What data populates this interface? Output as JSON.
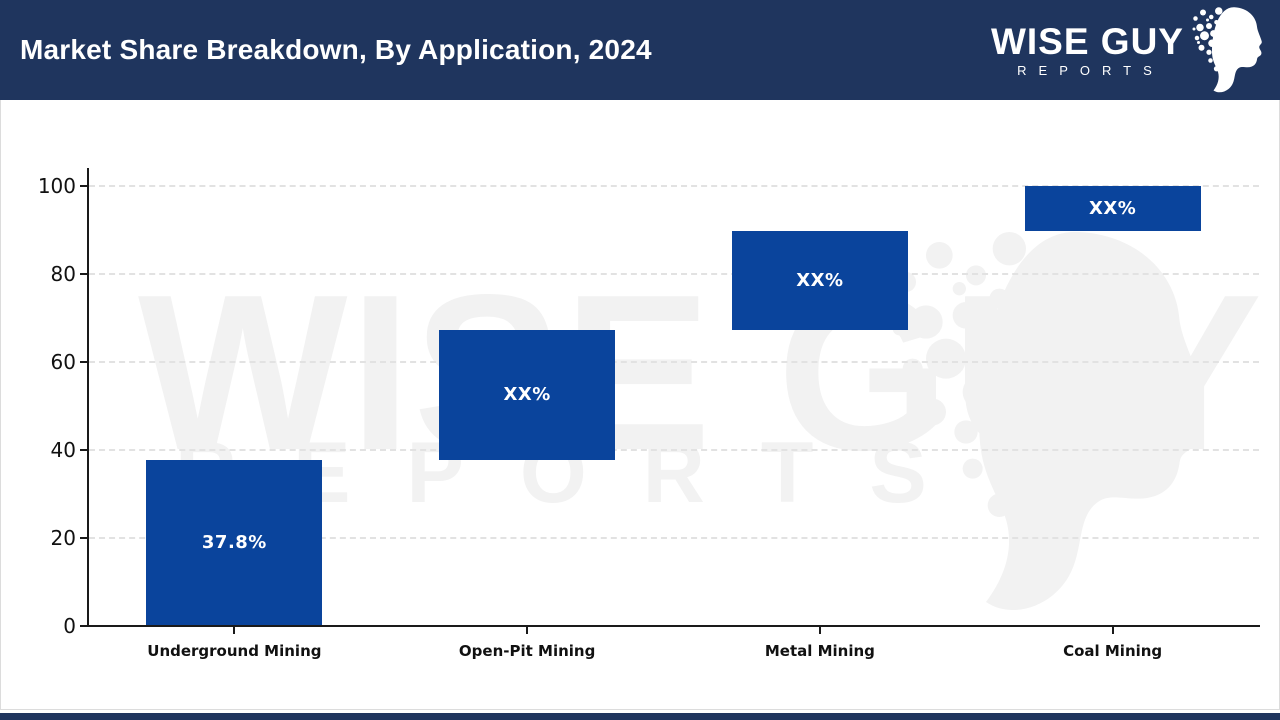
{
  "header": {
    "title": "Market Share Breakdown, By Application, 2024",
    "logo": {
      "line1": "WISE GUY",
      "line2": "REPORTS"
    }
  },
  "watermark": {
    "line1": "WISE GUY",
    "line2": "REPORTS"
  },
  "colors": {
    "header_bg": "#1f355e",
    "bar_fill": "#0a449c",
    "bar_label": "#ffffff",
    "gridline": "#e2e2e2",
    "axis": "#1a1a1a",
    "tick_label": "#111111",
    "watermark": "#f2f2f2",
    "footer_bg": "#1f355e"
  },
  "chart_data": {
    "type": "bar",
    "subtype": "waterfall",
    "title": "Market Share Breakdown, By Application, 2024",
    "categories": [
      "Underground Mining",
      "Open-Pit Mining",
      "Metal Mining",
      "Coal Mining"
    ],
    "series": [
      {
        "name": "Market Share (%)",
        "segments": [
          {
            "category": "Underground Mining",
            "start": 0,
            "end": 37.8,
            "label": "37.8%"
          },
          {
            "category": "Open-Pit Mining",
            "start": 37.8,
            "end": 67.3,
            "label": "XX%"
          },
          {
            "category": "Metal Mining",
            "start": 67.3,
            "end": 89.8,
            "label": "XX%"
          },
          {
            "category": "Coal Mining",
            "start": 89.8,
            "end": 100,
            "label": "XX%"
          }
        ]
      }
    ],
    "xlabel": "",
    "ylabel": "",
    "yticks": [
      0,
      20,
      40,
      60,
      80,
      100
    ],
    "ylim": [
      0,
      105
    ],
    "grid": "dashed-horizontal",
    "legend": "none"
  }
}
